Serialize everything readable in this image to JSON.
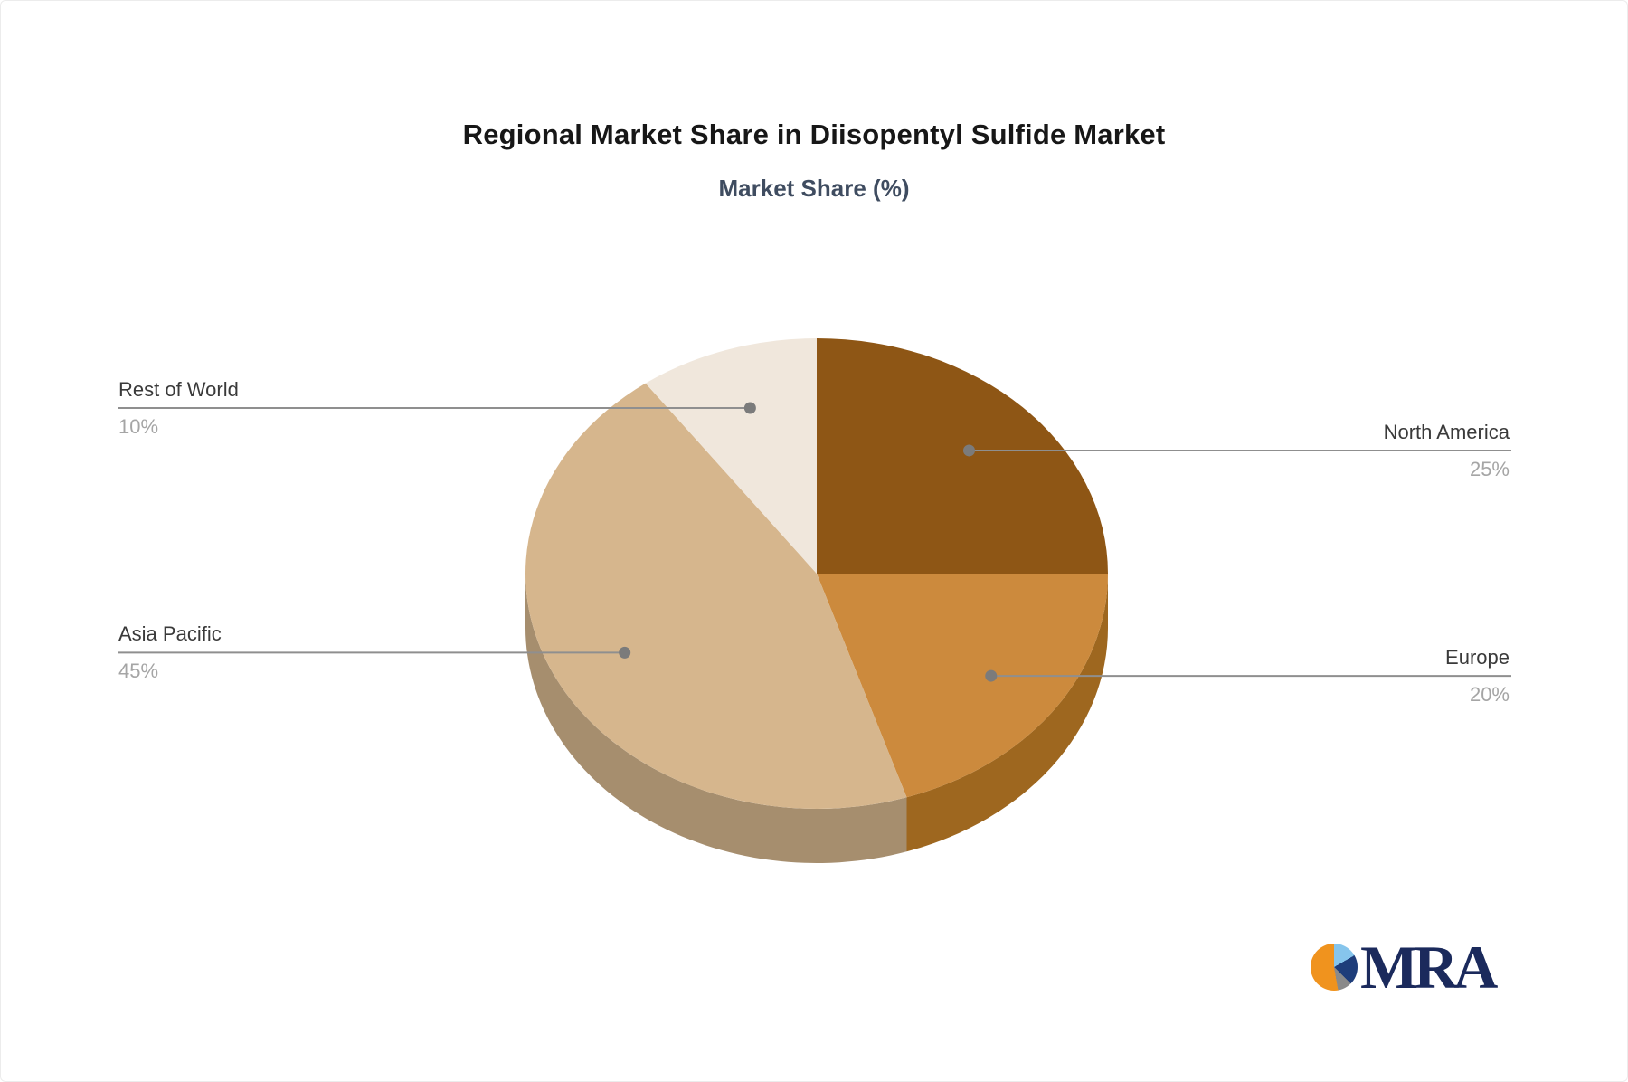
{
  "page": {
    "background": "#ffffff"
  },
  "chart_data": {
    "type": "pie",
    "style": "3d",
    "title": "Regional Market Share in Diisopentyl Sulfide Market",
    "subtitle": "Market Share (%)",
    "unit": "%",
    "start_angle_deg": 0,
    "direction": "clockwise",
    "legend_position": "none",
    "slices": [
      {
        "label": "North America",
        "value": 25,
        "display": "25%",
        "color": "#8E5615",
        "side_color": "#7A4A12"
      },
      {
        "label": "Europe",
        "value": 20,
        "display": "20%",
        "color": "#CC8A3D",
        "side_color": "#9E671F"
      },
      {
        "label": "Asia Pacific",
        "value": 45,
        "display": "45%",
        "color": "#D6B68D",
        "side_color": "#A68E6E"
      },
      {
        "label": "Rest of World",
        "value": 10,
        "display": "10%",
        "color": "#F0E7DC",
        "side_color": "#BFB3A2"
      }
    ],
    "leader_line_color": "#8f8f8f",
    "leader_dot_color": "#7b7b7b",
    "label_color": "#3a3a3a",
    "value_color": "#a5a5a5",
    "title_color": "#171717",
    "subtitle_color": "#3f4c60"
  },
  "logo": {
    "text": "MRA",
    "text_color": "#1b2a5c",
    "icon": "pie-icon",
    "icon_colors": [
      "#f0931e",
      "#86c5ec",
      "#1e3d7a",
      "#8a8a8a"
    ]
  }
}
